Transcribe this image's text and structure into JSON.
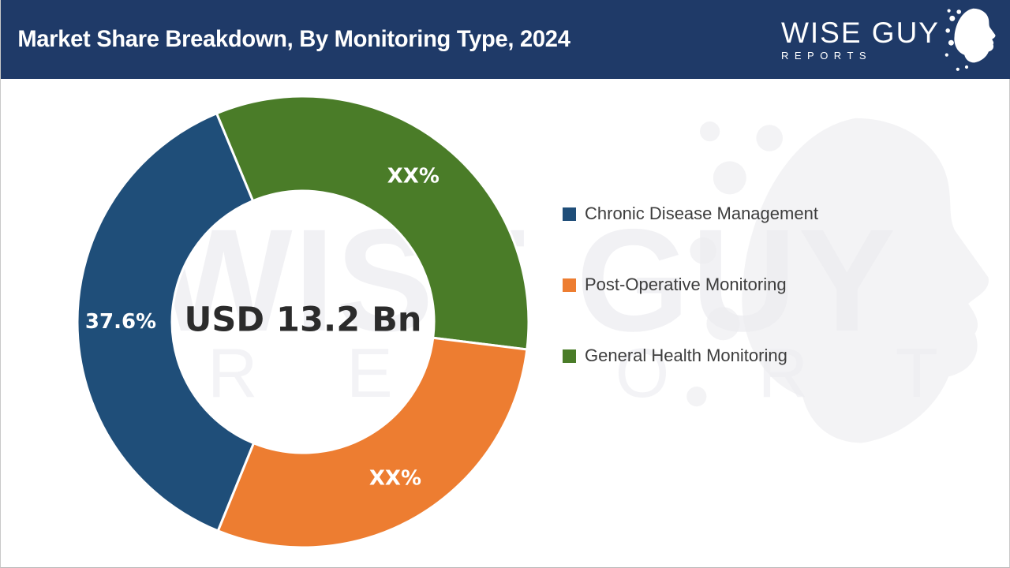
{
  "header": {
    "title": "Market Share Breakdown, By Monitoring Type, 2024",
    "brand": {
      "line1": "WISE GUY",
      "line2": "REPORTS"
    }
  },
  "watermark": {
    "line1": "WISE GUY",
    "line2": "R E P O R T S"
  },
  "colors": {
    "header_bg": "#1f3a68",
    "blue": "#1f4e79",
    "orange": "#ed7d31",
    "green": "#4a7c28",
    "card_border": "#c9c9c9"
  },
  "chart_data": {
    "type": "pie",
    "subtype": "donut",
    "title": "Market Share Breakdown, By Monitoring Type, 2024",
    "center_label": "USD 13.2 Bn",
    "start_angle_deg": -22.5,
    "direction": "clockwise",
    "inner_radius_ratio": 0.58,
    "segments": [
      {
        "name": "General Health Monitoring",
        "display_label": "XX%",
        "value_pct": 33.2,
        "color": "#4a7c28"
      },
      {
        "name": "Post-Operative Monitoring",
        "display_label": "XX%",
        "value_pct": 29.2,
        "color": "#ed7d31"
      },
      {
        "name": "Chronic Disease Management",
        "display_label": "37.6%",
        "value_pct": 37.6,
        "color": "#1f4e79"
      }
    ],
    "legend_position": "right",
    "legend": [
      {
        "label": "Chronic Disease Management",
        "color": "#1f4e79"
      },
      {
        "label": "Post-Operative Monitoring",
        "color": "#ed7d31"
      },
      {
        "label": "General Health Monitoring",
        "color": "#4a7c28"
      }
    ]
  }
}
